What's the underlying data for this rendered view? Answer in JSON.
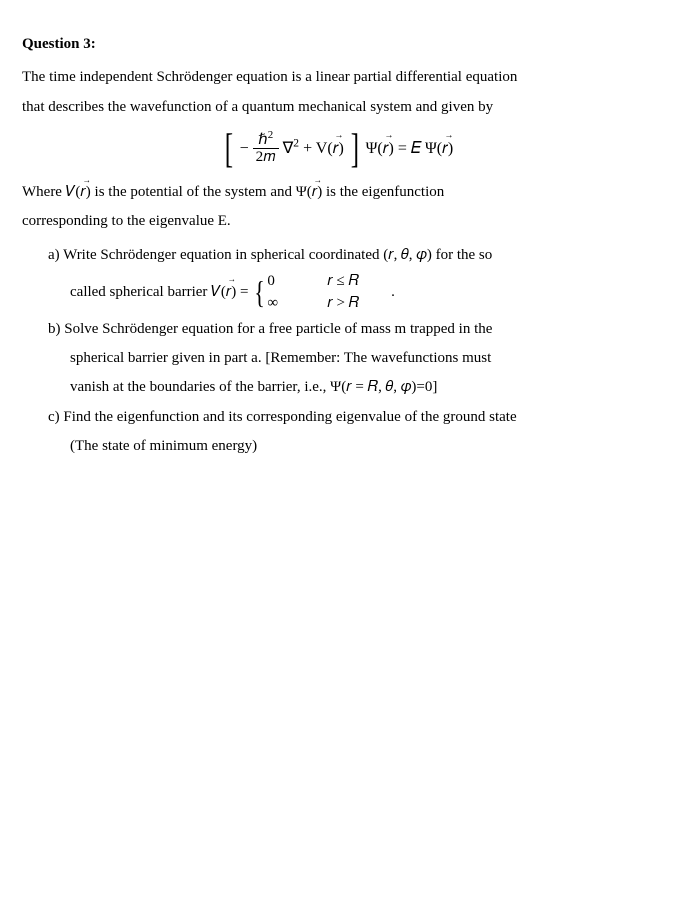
{
  "title": "Question 3:",
  "intro1": "The time independent Schrödenger equation is a linear partial differential equation",
  "intro2": "that describes the wavefunction of a quantum mechanical system and given by",
  "eq": {
    "hbar_sq": "ℏ",
    "two_m": "2𝑚",
    "nabla_sq": "∇",
    "plus_v": " + V(",
    "psi1": " Ψ(",
    "eq_e": ") = 𝐸 Ψ(",
    "close": ")"
  },
  "where1_a": "Where 𝑉(",
  "where1_b": ") is the potential of the system and  Ψ(",
  "where1_c": ") is the eigenfunction",
  "where2": "corresponding to the eigenvalue E.",
  "a1": "a)  Write Schrödenger equation in spherical coordinated (𝑟, 𝜃, 𝜑) for the so",
  "a2_a": "called spherical barrier  𝑉(",
  "a2_b": ") = ",
  "piecewise": {
    "v0": "0",
    "c0": "𝑟 ≤ 𝑅",
    "v1": "∞",
    "c1": "𝑟 > 𝑅"
  },
  "a2_dot": " .",
  "b1": "b)  Solve Schrödenger equation for a free particle of mass m  trapped in the",
  "b2": "spherical barrier given in part a. [Remember: The wavefunctions must",
  "b3": "vanish at the boundaries of the barrier, i.e., Ψ(𝑟 = 𝑅, 𝜃, 𝜑)=0]",
  "c1": "c)  Find the eigenfunction and its corresponding eigenvalue of the ground state",
  "c2": "(The state of minimum energy)"
}
